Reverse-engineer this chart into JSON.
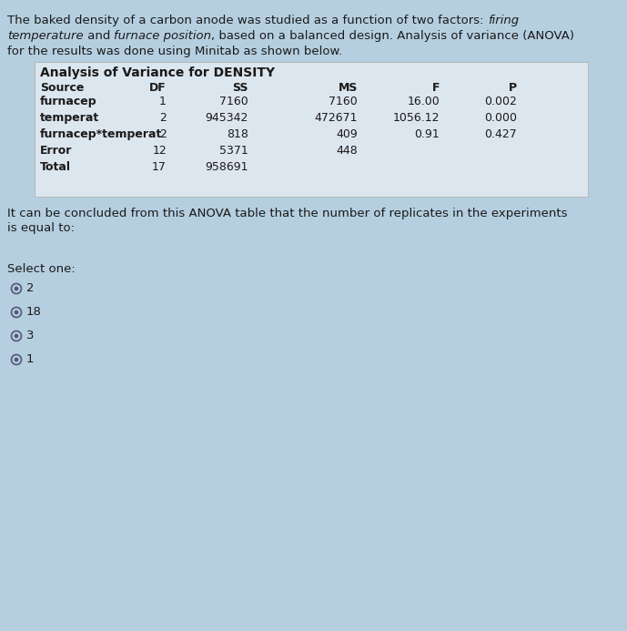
{
  "bg_color": "#b5cfe0",
  "fig_bg_color": "#b5cfe0",
  "table_bg": "#dce6ef",
  "text_color": "#1a1a1a",
  "table_text_color": "#1a1a1a",
  "table_title": "Analysis of Variance for DENSITY",
  "table_headers": [
    "Source",
    "DF",
    "SS",
    "MS",
    "F",
    "P"
  ],
  "table_rows": [
    [
      "furnacep",
      "1",
      "7160",
      "7160",
      "16.00",
      "0.002"
    ],
    [
      "temperat",
      "2",
      "945342",
      "472671",
      "1056.12",
      "0.000"
    ],
    [
      "furnacep*temperat",
      "2",
      "818",
      "409",
      "0.91",
      "0.427"
    ],
    [
      "Error",
      "12",
      "5371",
      "448",
      "",
      ""
    ],
    [
      "Total",
      "17",
      "958691",
      "",
      "",
      ""
    ]
  ],
  "conclusion_text1": "It can be concluded from this ANOVA table that the number of replicates in the experiments",
  "conclusion_text2": "is equal to:",
  "select_label": "Select one:",
  "options": [
    "2",
    "18",
    "3",
    "1"
  ],
  "intro_parts_line1": [
    {
      "text": "The baked density of a carbon anode was studied as a function of two factors: ",
      "italic": false
    },
    {
      "text": "firing",
      "italic": true
    }
  ],
  "intro_parts_line2": [
    {
      "text": "temperature",
      "italic": true
    },
    {
      "text": " and ",
      "italic": false
    },
    {
      "text": "furnace position",
      "italic": true
    },
    {
      "text": ", based on a balanced design. Analysis of variance (ANOVA)",
      "italic": false
    }
  ],
  "intro_line3": "for the results was done using Minitab as shown below.",
  "font_size_body": 9.5,
  "font_size_table": 9.0,
  "font_size_table_title": 10.0,
  "radio_color": "#555577",
  "radio_outer_r": 5.5,
  "radio_inner_r": 2.0
}
